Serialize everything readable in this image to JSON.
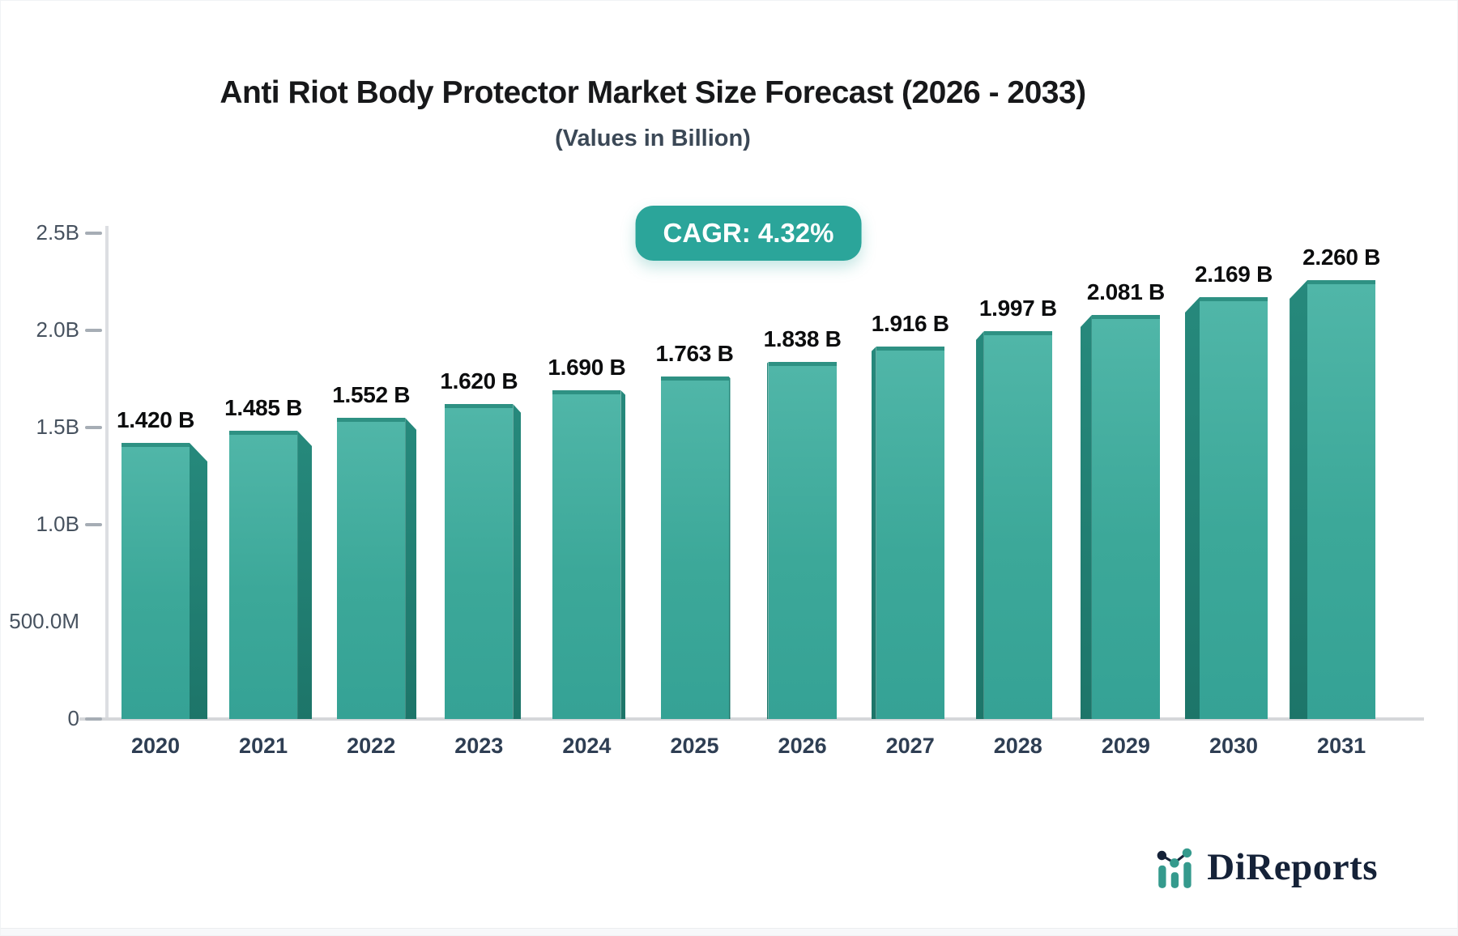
{
  "chart": {
    "title": "Anti Riot Body Protector Market Size Forecast (2026 - 2033)",
    "subtitle": "(Values in Billion)",
    "cagr_label": "CAGR: 4.32%",
    "brand": "DiReports"
  },
  "chart_data": {
    "type": "bar",
    "title": "Anti Riot Body Protector Market Size Forecast (2026 - 2033)",
    "subtitle": "(Values in Billion)",
    "annotation": "CAGR: 4.32%",
    "xlabel": "",
    "ylabel": "",
    "ylim": [
      0,
      2.5
    ],
    "grid": false,
    "legend": false,
    "categories": [
      "2020",
      "2021",
      "2022",
      "2023",
      "2024",
      "2025",
      "2026",
      "2027",
      "2028",
      "2029",
      "2030",
      "2031"
    ],
    "values": [
      1.42,
      1.485,
      1.552,
      1.62,
      1.69,
      1.763,
      1.838,
      1.916,
      1.997,
      2.081,
      2.169,
      2.26
    ],
    "value_labels": [
      "1.420 B",
      "1.485 B",
      "1.552 B",
      "1.620 B",
      "1.690 B",
      "1.763 B",
      "1.838 B",
      "1.916 B",
      "1.997 B",
      "2.081 B",
      "2.169 B",
      "2.260 B"
    ],
    "yticks": [
      {
        "label": "2.5B",
        "value": 2.5,
        "dash": true
      },
      {
        "label": "2.0B",
        "value": 2.0,
        "dash": true
      },
      {
        "label": "1.5B",
        "value": 1.5,
        "dash": true
      },
      {
        "label": "1.0B",
        "value": 1.0,
        "dash": true
      },
      {
        "label": "500.0M",
        "value": 0.5,
        "dash": false
      },
      {
        "label": "0",
        "value": 0.0,
        "dash": true
      }
    ],
    "colors": {
      "bar_face_top": "#50b6a8",
      "bar_face_bottom": "#35a295",
      "bar_side": "#1f7d72",
      "bar_top_edge": "#2e9183",
      "badge_bg": "#2ba59a",
      "badge_text": "#ffffff",
      "axis": "#dcdee2",
      "tick_text": "#47525f",
      "year_text": "#2e3e53",
      "logo_navy": "#152238",
      "logo_teal": "#359a8d"
    }
  }
}
